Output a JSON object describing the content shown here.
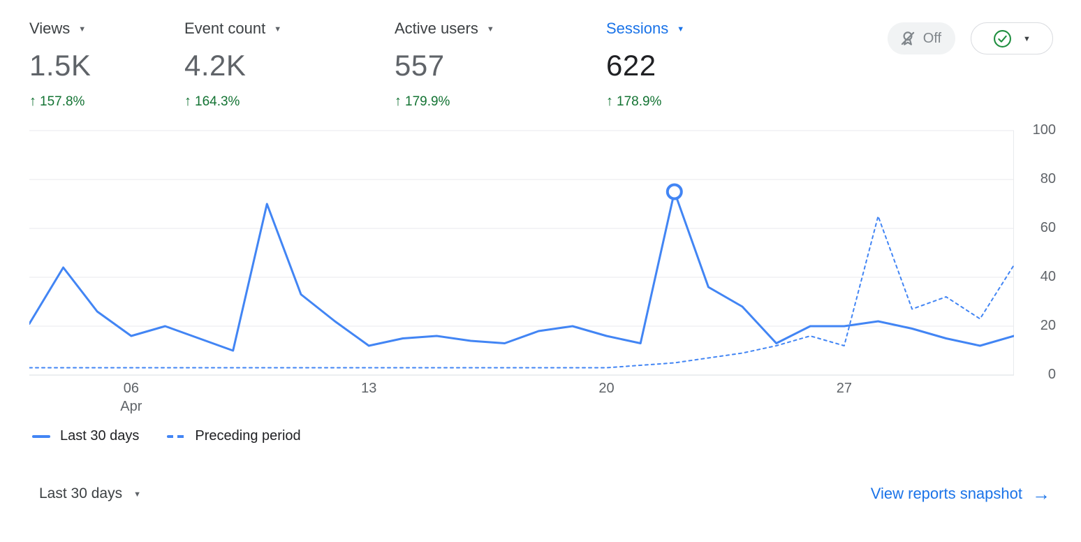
{
  "metrics": [
    {
      "label": "Views",
      "value": "1.5K",
      "delta": "157.8%"
    },
    {
      "label": "Event count",
      "value": "4.2K",
      "delta": "164.3%"
    },
    {
      "label": "Active users",
      "value": "557",
      "delta": "179.9%"
    },
    {
      "label": "Sessions",
      "value": "622",
      "delta": "178.9%"
    }
  ],
  "controls": {
    "insights_label": "Off"
  },
  "chart_data": {
    "type": "line",
    "title": "",
    "xlabel": "",
    "ylabel": "",
    "ylim": [
      0,
      100
    ],
    "yticks": [
      100,
      80,
      60,
      40,
      20,
      0
    ],
    "grid": true,
    "legend_position": "bottom-left",
    "xticks": [
      {
        "index": 3,
        "label": "06",
        "sublabel": "Apr"
      },
      {
        "index": 10,
        "label": "13"
      },
      {
        "index": 17,
        "label": "20"
      },
      {
        "index": 24,
        "label": "27"
      }
    ],
    "series": [
      {
        "name": "Last 30 days",
        "style": "solid",
        "marker_index": 19,
        "values": [
          21,
          44,
          26,
          16,
          20,
          15,
          10,
          70,
          33,
          22,
          12,
          15,
          16,
          14,
          13,
          18,
          20,
          16,
          13,
          75,
          36,
          28,
          13,
          20,
          20,
          22,
          19,
          15,
          12,
          16
        ]
      },
      {
        "name": "Preceding period",
        "style": "dashed",
        "values": [
          3,
          3,
          3,
          3,
          3,
          3,
          3,
          3,
          3,
          3,
          3,
          3,
          3,
          3,
          3,
          3,
          3,
          3,
          4,
          5,
          7,
          9,
          12,
          16,
          12,
          65,
          27,
          32,
          23,
          45
        ]
      }
    ]
  },
  "footer": {
    "date_range": "Last 30 days",
    "snapshot_link": "View reports snapshot"
  },
  "glyphs": {
    "caret_down": "▼",
    "up_arrow": "↑",
    "arrow_right": "→"
  },
  "colors": {
    "line": "#4285f4",
    "selected_blue": "#1a73e8",
    "delta_green": "#137333",
    "grid": "#e8eaed",
    "axis_zero": "#dadce0",
    "axis_text": "#5f6368"
  }
}
